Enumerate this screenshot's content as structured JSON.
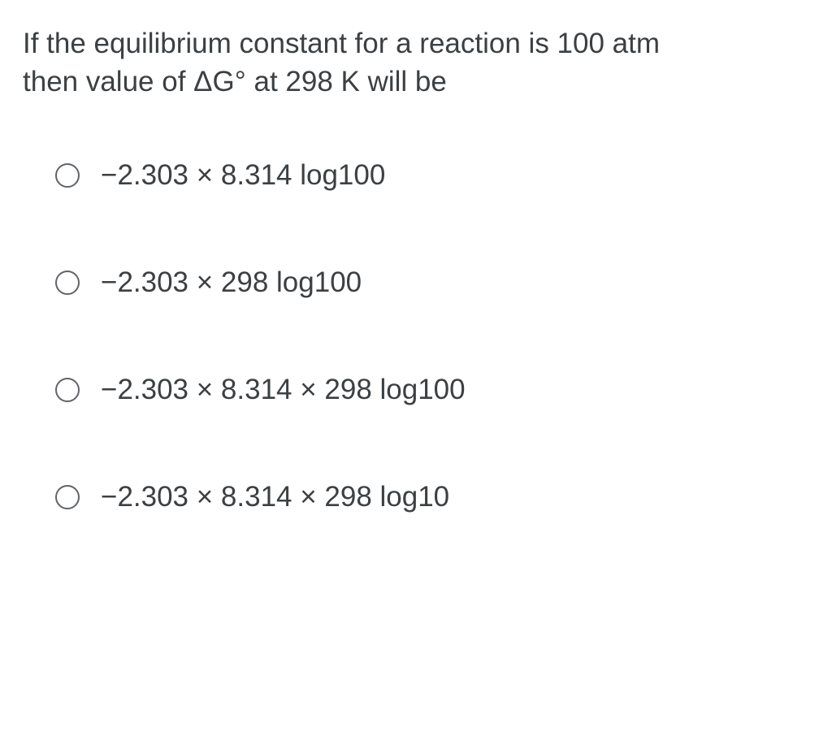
{
  "question": {
    "line1": "If the equilibrium constant for a reaction is 100 atm",
    "line2": "then value of ΔG° at 298 K will be"
  },
  "options": [
    {
      "text": "−2.303 × 8.314 log100"
    },
    {
      "text": "−2.303 × 298 log100"
    },
    {
      "text": "−2.303 × 8.314 × 298 log100"
    },
    {
      "text": "−2.303 × 8.314 × 298 log10"
    }
  ],
  "colors": {
    "text": "#3c4043",
    "radio_border": "#606368",
    "background": "#ffffff"
  },
  "font_sizes": {
    "question": 35,
    "option": 35
  }
}
